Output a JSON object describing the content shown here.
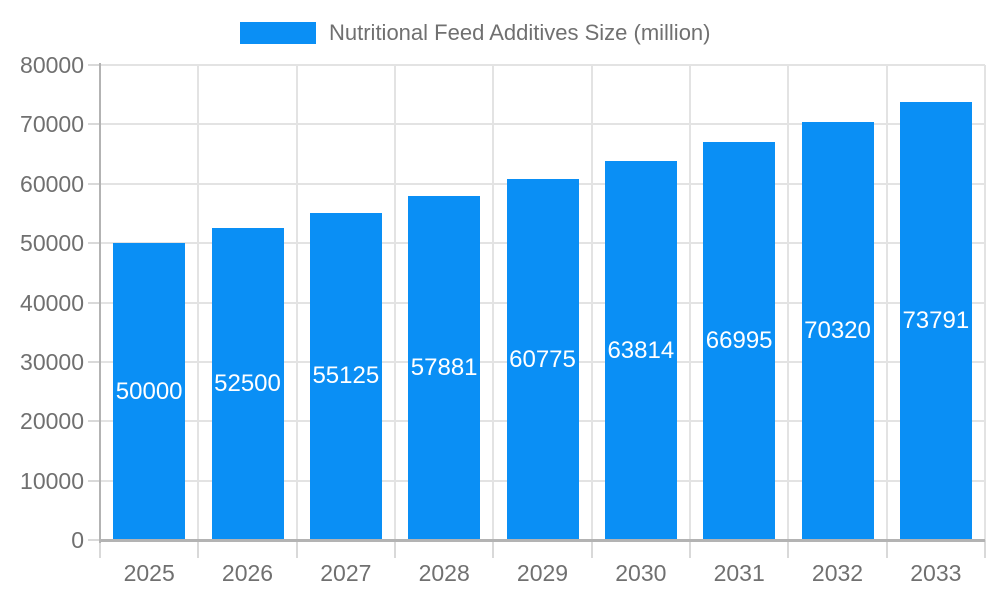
{
  "chart_data": {
    "type": "bar",
    "title": "Nutritional Feed Additives Size (million)",
    "categories": [
      "2025",
      "2026",
      "2027",
      "2028",
      "2029",
      "2030",
      "2031",
      "2032",
      "2033"
    ],
    "series": [
      {
        "name": "Nutritional Feed Additives Size (million)",
        "values": [
          50000,
          52500,
          55125,
          57881,
          60775,
          63814,
          66995,
          70320,
          73791
        ]
      }
    ],
    "xlabel": "",
    "ylabel": "",
    "ylim": [
      0,
      80000
    ],
    "ytick_step": 10000,
    "ytick_labels": [
      "0",
      "10000",
      "20000",
      "30000",
      "40000",
      "50000",
      "60000",
      "70000",
      "80000"
    ],
    "grid": true,
    "bar_value_labels": true,
    "legend_position": "top",
    "colors": {
      "bar": "#0a8ff5",
      "bar_label": "#ffffff",
      "axis_text": "#707070",
      "axis_line": "#b3b3b3",
      "gridline": "#e3e3e3",
      "tick": "#d9d9d9"
    }
  }
}
